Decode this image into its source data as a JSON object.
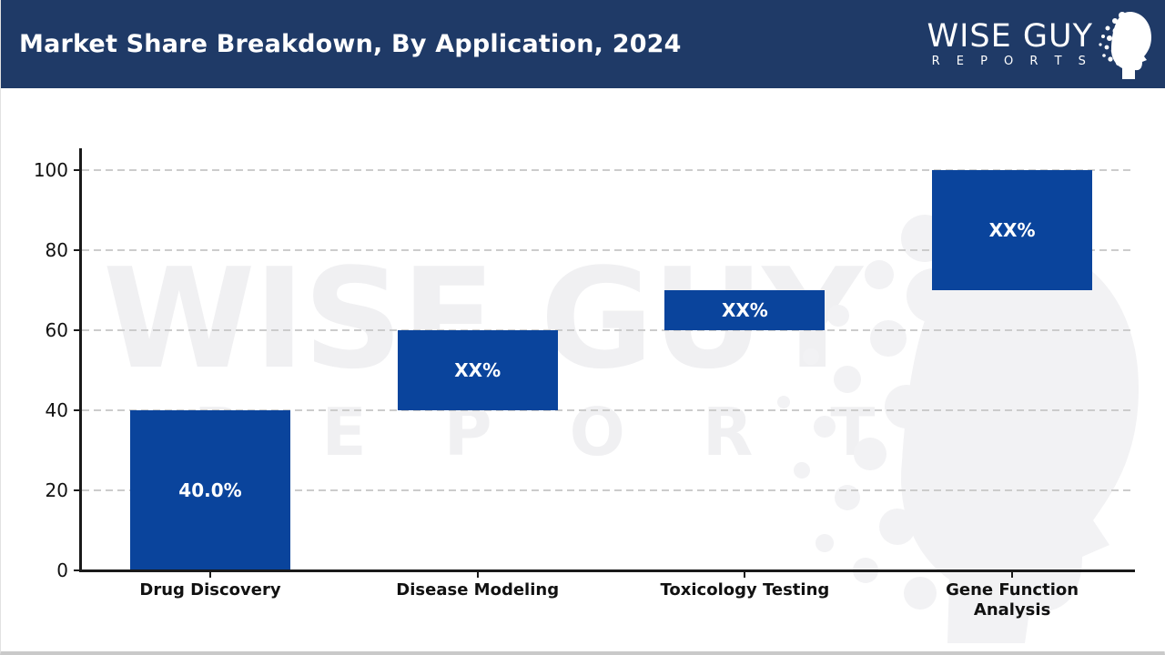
{
  "header": {
    "title": "Market Share Breakdown, By Application, 2024",
    "logo": {
      "line1": "WISE GUY",
      "line2": "R E P O R T S"
    }
  },
  "watermark": {
    "line1": "WISE GUY",
    "line2": "R E P O R T S"
  },
  "colors": {
    "header_bg": "#1F3A67",
    "bar": "#0A449C",
    "grid": "#CCCCCC",
    "axis": "#1A1A1A",
    "watermark": "#F0F0F2",
    "bar_label": "#FFFFFF"
  },
  "chart_data": {
    "type": "bar",
    "subtype": "waterfall",
    "title": "Market Share Breakdown, By Application, 2024",
    "categories": [
      "Drug Discovery",
      "Disease Modeling",
      "Toxicology Testing",
      "Gene Function Analysis"
    ],
    "segments": [
      {
        "category": "Drug Discovery",
        "start": 0,
        "end": 40,
        "label": "40.0%"
      },
      {
        "category": "Disease Modeling",
        "start": 40,
        "end": 60,
        "label": "XX%"
      },
      {
        "category": "Toxicology Testing",
        "start": 60,
        "end": 70,
        "label": "XX%"
      },
      {
        "category": "Gene Function Analysis",
        "start": 70,
        "end": 100,
        "label": "XX%"
      }
    ],
    "yticks": [
      0,
      20,
      40,
      60,
      80,
      100
    ],
    "ylim": [
      0,
      105
    ],
    "xlabel": "",
    "ylabel": "",
    "legend": null,
    "grid": "horizontal-dashed"
  }
}
